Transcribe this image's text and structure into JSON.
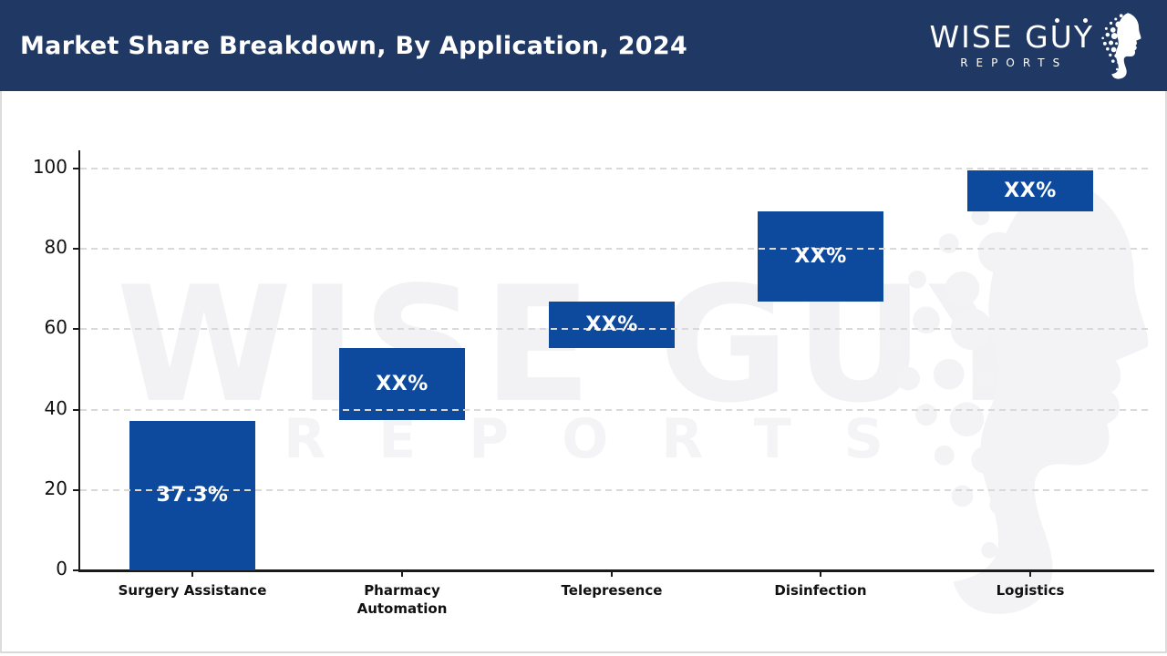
{
  "header": {
    "title": "Market Share Breakdown, By Application, 2024",
    "logo": {
      "line1": "WISE GUY",
      "line2": "REPORTS"
    }
  },
  "watermark": {
    "line1": "WISE GUY",
    "line2": "REPORTS"
  },
  "colors": {
    "header_bg": "#1f3864",
    "bar": "#0d4a9e",
    "grid": "#d9d9d9",
    "axis": "#1a1a1a",
    "bar_label": "#ffffff"
  },
  "chart_data": {
    "type": "bar",
    "subtype": "waterfall",
    "title": "Market Share Breakdown, By Application, 2024",
    "categories": [
      "Surgery Assistance",
      "Pharmacy Automation",
      "Telepresence",
      "Disinfection",
      "Logistics"
    ],
    "tick_labels": [
      "Surgery Assistance",
      "Pharmacy\nAutomation",
      "Telepresence",
      "Disinfection",
      "Logistics"
    ],
    "segments": [
      {
        "category": "Surgery Assistance",
        "start": 0,
        "end": 37.3,
        "label": "37.3%"
      },
      {
        "category": "Pharmacy Automation",
        "start": 37.3,
        "end": 55.4,
        "label": "XX%"
      },
      {
        "category": "Telepresence",
        "start": 55.4,
        "end": 67.0,
        "label": "XX%"
      },
      {
        "category": "Disinfection",
        "start": 67.0,
        "end": 89.4,
        "label": "XX%"
      },
      {
        "category": "Logistics",
        "start": 89.4,
        "end": 99.5,
        "label": "XX%"
      }
    ],
    "xlabel": "",
    "ylabel": "",
    "ylim": [
      0,
      100
    ],
    "yticks": [
      0,
      20,
      40,
      60,
      80,
      100
    ],
    "grid": "dashed-horizontal",
    "legend": "none"
  }
}
